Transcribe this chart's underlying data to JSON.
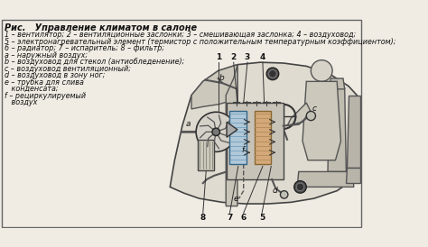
{
  "title": "Рис.   Управление климатом в салоне",
  "legend_lines": [
    "1 – вентилятор; 2 – вентиляционные заслонки; 3 – смешивающая заслонка; 4 – воздуховод;",
    "5 – электронагревательный элемент (термистор с положительным температурным коэффициентом);",
    "6 – радиатор; 7 – испаритель; 8 – фильтр;",
    "a – наружный воздух;",
    "b – воздуховод для стекол (антиобледенение);",
    "c – воздуховод вентиляционный;",
    "d – воздуховод в зону ног;",
    "e – трубка для слива",
    "   конденсата;",
    "f – рециркулируемый",
    "   воздух"
  ],
  "bg_color": "#f0ece4",
  "border_color": "#666666",
  "text_color": "#111111",
  "font_size_title": 7.0,
  "font_size_legend": 5.8
}
